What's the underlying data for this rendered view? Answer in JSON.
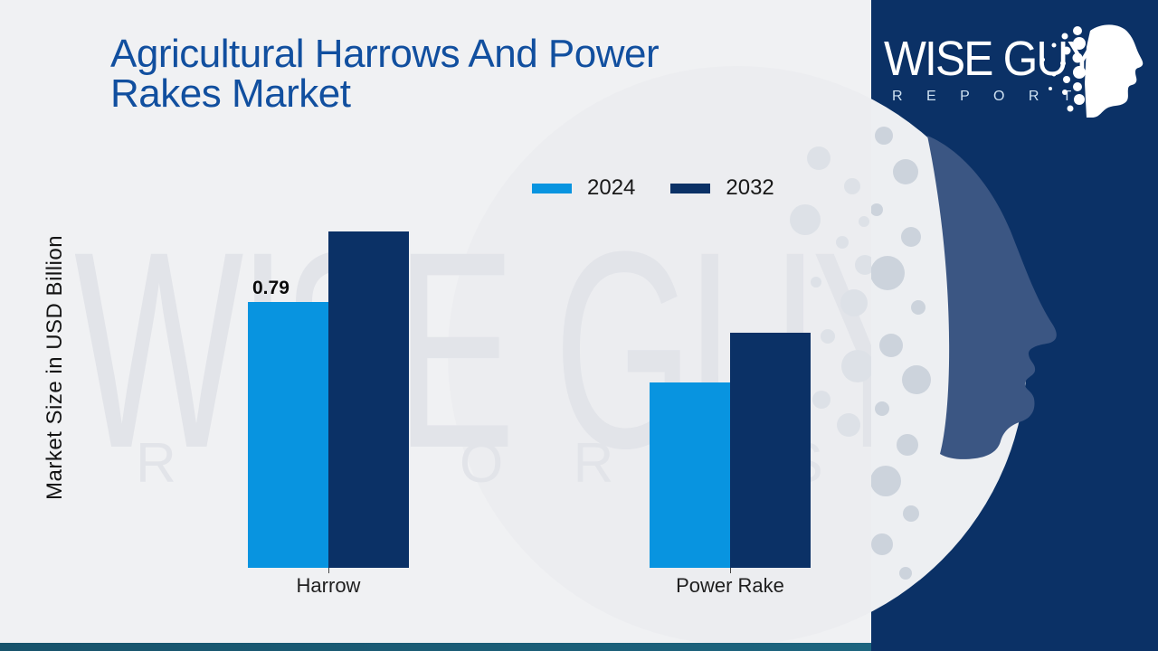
{
  "title": "Agricultural Harrows And Power Rakes Market",
  "y_axis_label": "Market Size in USD Billion",
  "watermark": {
    "line1": "WISE GUY",
    "line2": "R E P O R T S"
  },
  "logo": {
    "brand_top": "WISE GUY",
    "brand_bottom": "R E P O R T S"
  },
  "colors": {
    "background": "#f0f1f3",
    "title_blue": "#114f9f",
    "series_2024": "#0894e0",
    "series_2032": "#0b3166",
    "panel_navy": "#0b3166",
    "face_silhouette": "#3b5683",
    "bottom_bar_teal": "#1c5f78",
    "watermark_gray": "#e2e4e9"
  },
  "chart_data": {
    "type": "bar",
    "title": "Agricultural Harrows And Power Rakes Market",
    "categories": [
      "Harrow",
      "Power Rake"
    ],
    "series": [
      {
        "name": "2024",
        "color": "#0894e0",
        "values": [
          0.79,
          0.55
        ],
        "data_labels": [
          "0.79",
          ""
        ]
      },
      {
        "name": "2032",
        "color": "#0b3166",
        "values": [
          1.0,
          0.7
        ],
        "data_labels": [
          "",
          ""
        ]
      }
    ],
    "xlabel": "",
    "ylabel": "Market Size in USD Billion",
    "ylim": [
      0,
      1.07
    ],
    "grid": false,
    "legend_position": "top",
    "data_label_note": "only Harrow 2024 value 0.79 is printed on the chart; other values estimated from bar heights"
  }
}
